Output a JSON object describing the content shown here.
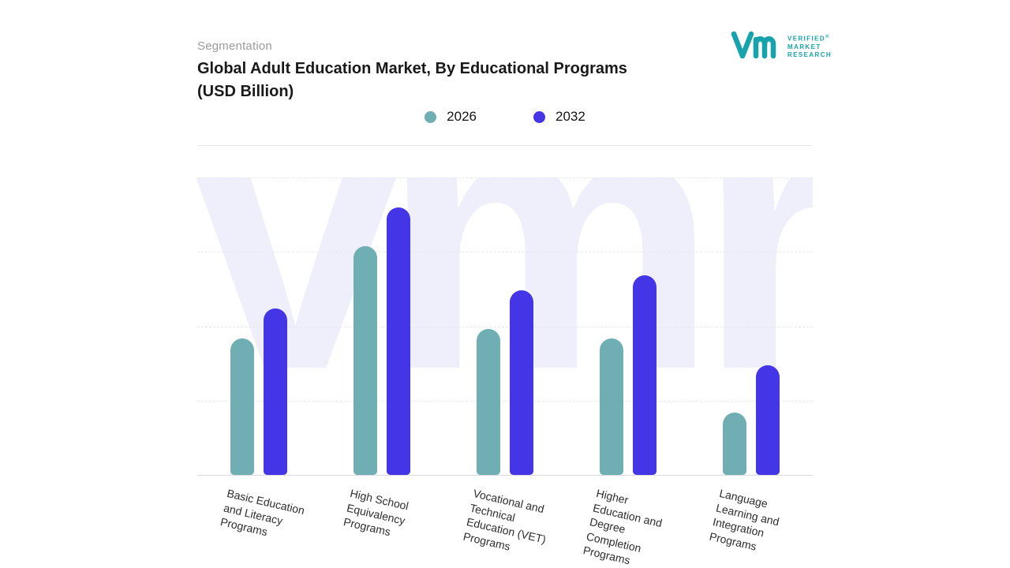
{
  "header": {
    "eyebrow": "Segmentation",
    "title_line1": "Global Adult Education Market, By Educational Programs",
    "title_line2": "(USD Billion)"
  },
  "logo": {
    "lines": [
      "VERIFIED",
      "MARKET",
      "RESEARCH"
    ],
    "reg": "®",
    "color": "#17a3ab"
  },
  "legend": [
    {
      "label": "2026",
      "color": "#6faeb3"
    },
    {
      "label": "2032",
      "color": "#4435e6"
    }
  ],
  "watermark": "vmr",
  "chart_data": {
    "type": "bar",
    "title": "Global Adult Education Market, By Educational Programs (USD Billion)",
    "categories": [
      "Basic Education and Literacy Programs",
      "High School Equivalency Programs",
      "Vocational and Technical Education (VET) Programs",
      "Higher Education and Degree Completion Programs",
      "Language Learning and Integration Programs"
    ],
    "category_label_lines": [
      [
        "Basic Education",
        "and Literacy",
        "Programs"
      ],
      [
        "High School",
        "Equivalency",
        "Programs"
      ],
      [
        "Vocational and",
        "Technical",
        "Education (VET)",
        "Programs"
      ],
      [
        "Higher",
        "Education and",
        "Degree",
        "Completion",
        "Programs"
      ],
      [
        "Language",
        "Learning and",
        "Integration",
        "Programs"
      ]
    ],
    "series": [
      {
        "name": "2026",
        "color": "#6faeb3",
        "values": [
          46,
          77,
          49,
          46,
          21
        ]
      },
      {
        "name": "2032",
        "color": "#4435e6",
        "values": [
          56,
          90,
          62,
          67,
          37
        ]
      }
    ],
    "xlabel": "",
    "ylabel": "",
    "ylim": [
      0,
      100
    ],
    "grid": "dashed-horizontal",
    "legend_position": "top"
  }
}
